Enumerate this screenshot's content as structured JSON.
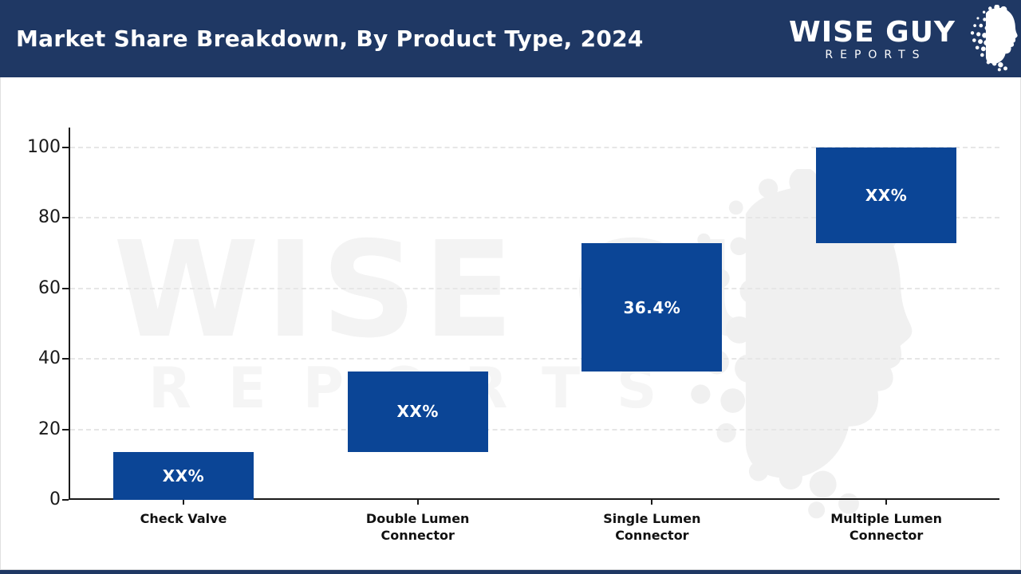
{
  "header": {
    "title": "Market Share Breakdown, By Product Type, 2024",
    "logo": {
      "name": "WISE GUY",
      "sub": "REPORTS"
    }
  },
  "watermark": {
    "line1": "WISE GUY",
    "line2": "REPORTS"
  },
  "chart_data": {
    "type": "bar",
    "subtype": "stacked-waterfall",
    "title": "Market Share Breakdown, By Product Type, 2024",
    "categories": [
      "Check Valve",
      "Double Lumen Connector",
      "Single Lumen Connector",
      "Multiple Lumen Connector"
    ],
    "segments": [
      {
        "name": "Check Valve",
        "category_lines": [
          "Check Valve"
        ],
        "start": 0,
        "end": 13.6,
        "label": "XX%"
      },
      {
        "name": "Double Lumen Connector",
        "category_lines": [
          "Double Lumen",
          "Connector"
        ],
        "start": 13.6,
        "end": 36.4,
        "label": "XX%"
      },
      {
        "name": "Single Lumen Connector",
        "category_lines": [
          "Single Lumen",
          "Connector"
        ],
        "start": 36.4,
        "end": 72.8,
        "label": "36.4%"
      },
      {
        "name": "Multiple Lumen Connector",
        "category_lines": [
          "Multiple Lumen",
          "Connector"
        ],
        "start": 72.8,
        "end": 100,
        "label": "XX%"
      }
    ],
    "xlabel": "",
    "ylabel": "",
    "ylim": [
      0,
      100
    ],
    "yticks": [
      0,
      20,
      40,
      60,
      80,
      100
    ],
    "grid": true,
    "grid_style": "dashed",
    "legend": null,
    "bar_color": "#0b4596",
    "bar_label_color": "#ffffff"
  },
  "colors": {
    "header_bg": "#1f3864",
    "footer_bg": "#1f3864",
    "bar": "#0b4596",
    "grid": "#e6e6e6",
    "axis": "#1a1a1a",
    "watermark": "#f3f3f3"
  }
}
